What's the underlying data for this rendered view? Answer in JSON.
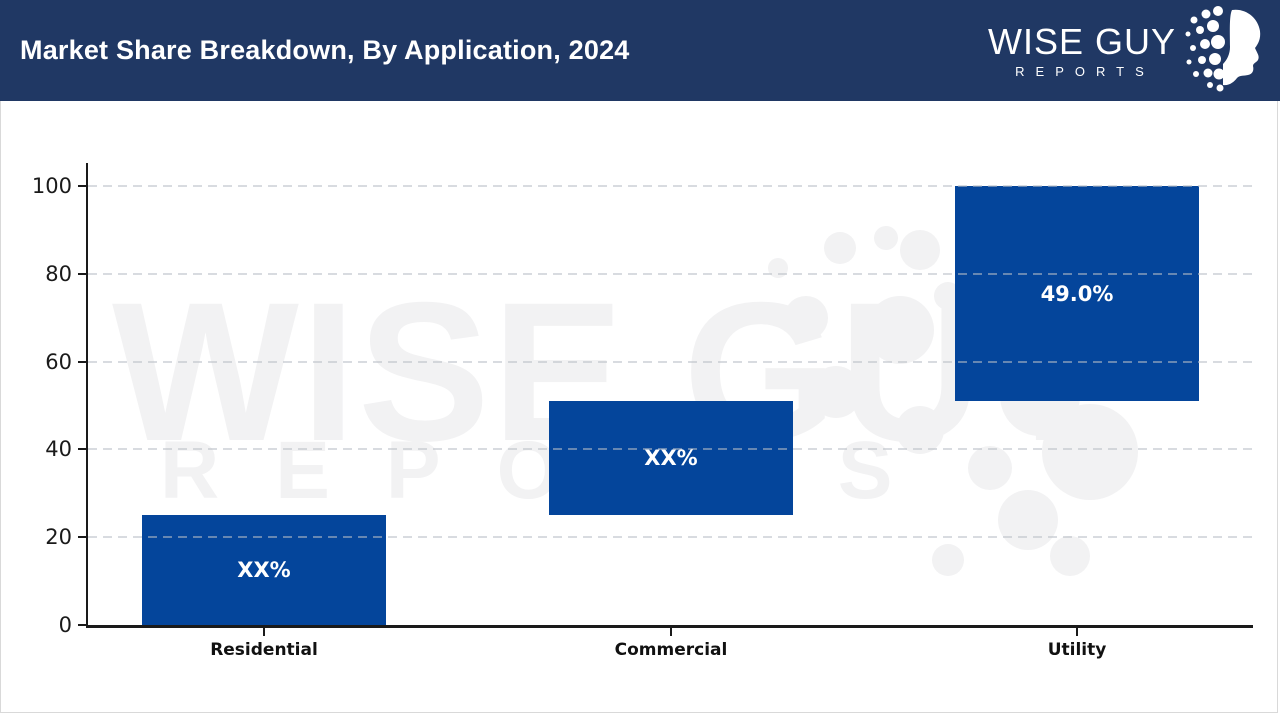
{
  "header": {
    "title": "Market Share Breakdown, By Application, 2024",
    "logo": {
      "line1": "WISE GUY",
      "line2": "REPORTS"
    }
  },
  "watermark": {
    "line1": "WISE GUY",
    "line2": "REPORTS"
  },
  "colors": {
    "header_bg": "#203864",
    "bar": "#04459b",
    "bar_label": "#ffffff",
    "grid": "#c8ccd2",
    "axis": "#1a1a1a",
    "watermark": "#f2f2f3"
  },
  "chart_data": {
    "type": "bar",
    "subtype": "waterfall",
    "title": "Market Share Breakdown, By Application, 2024",
    "xlabel": "",
    "ylabel": "",
    "categories": [
      "Residential",
      "Commercial",
      "Utility"
    ],
    "segments": [
      {
        "category": "Residential",
        "start": 0,
        "end": 25,
        "value": 25,
        "label": "XX%"
      },
      {
        "category": "Commercial",
        "start": 25,
        "end": 51,
        "value": 26,
        "label": "XX%"
      },
      {
        "category": "Utility",
        "start": 51,
        "end": 100,
        "value": 49,
        "label": "49.0%"
      }
    ],
    "ylim": [
      0,
      100
    ],
    "yticks": [
      0,
      20,
      40,
      60,
      80,
      100
    ],
    "grid": "horizontal-dashed",
    "legend": "none"
  }
}
